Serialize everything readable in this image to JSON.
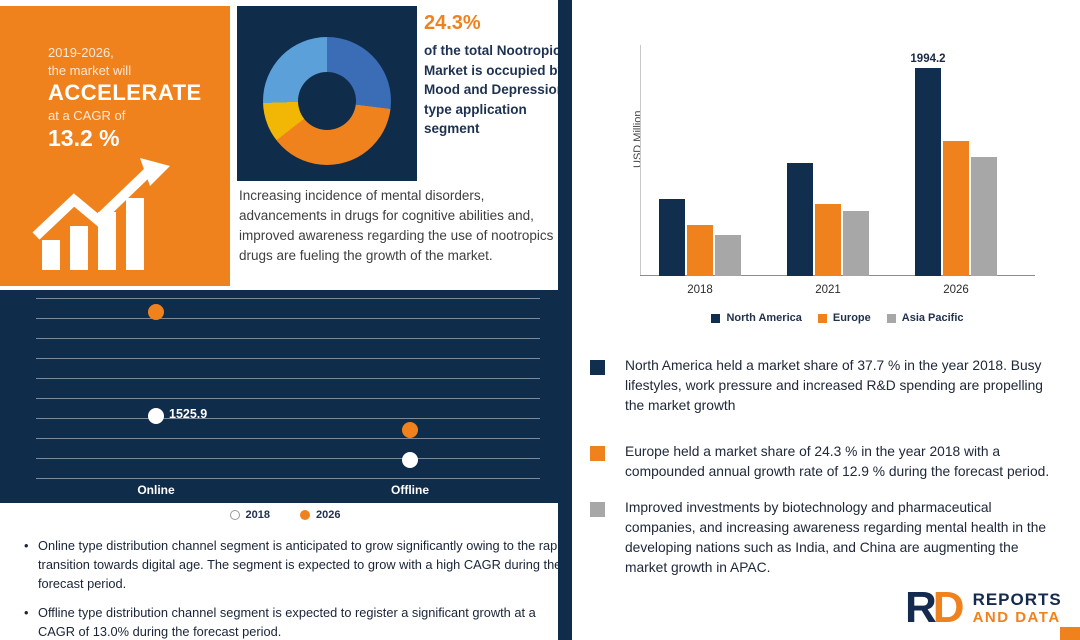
{
  "colors": {
    "orange": "#F0821E",
    "navy": "#102C4B",
    "bar_navy": "#122E4F",
    "gray": "#A7A7A7"
  },
  "promo": {
    "period": "2019-2026,",
    "line2": "the market will",
    "accelerate": "ACCELERATE",
    "cagr_label": "at a CAGR of",
    "cagr_value": "13.2 %"
  },
  "application_highlight": {
    "pct": "24.3%",
    "desc": "of the total Nootropics Market is occupied by Mood and Depression type application segment",
    "paragraph": "Increasing incidence of mental disorders, advancements in drugs for cognitive abilities and, improved awareness regarding the use of nootropics drugs are fueling the growth of the market."
  },
  "left_bullets": [
    "Online type distribution channel segment is anticipated to grow significantly owing to the rapid transition towards digital age. The segment is expected to grow with a high CAGR during the forecast period.",
    "Offline type distribution channel segment is expected to register a significant growth at a CAGR of 13.0% during the forecast period."
  ],
  "right_bullets": [
    {
      "color": "#122E4F",
      "text": "North America held a market share of 37.7 % in the year 2018. Busy lifestyles, work pressure and increased R&D spending are propelling the market growth"
    },
    {
      "color": "#F0821E",
      "text": "Europe held a market share of 24.3 % in the year 2018 with a compounded annual growth rate of 12.9 % during the forecast period."
    },
    {
      "color": "#A7A7A7",
      "text": "Improved investments by biotechnology and pharmaceutical companies, and increasing awareness regarding mental health in the developing nations such as India, and China are augmenting the market growth in APAC."
    }
  ],
  "logo": {
    "mark_r": "R",
    "mark_d": "D",
    "name_top": "REPORTS",
    "name_bottom": "AND DATA"
  },
  "chart_data": [
    {
      "id": "regional-bar",
      "type": "bar",
      "title": "",
      "ylabel": "USD Million",
      "categories": [
        "2018",
        "2021",
        "2026"
      ],
      "series": [
        {
          "name": "North America",
          "color": "#122E4F",
          "values": [
            743,
            1086,
            1994.2
          ]
        },
        {
          "name": "Europe",
          "color": "#F0821E",
          "values": [
            489,
            694,
            1300
          ]
        },
        {
          "name": "Asia Pacific",
          "color": "#A7A7A7",
          "values": [
            391,
            626,
            1144
          ]
        }
      ],
      "data_label": {
        "series": "North America",
        "category": "2026",
        "text": "1994.2"
      },
      "ylim": [
        0,
        2150
      ],
      "grid": false,
      "legend_position": "bottom"
    },
    {
      "id": "channel-dot",
      "type": "scatter",
      "title": "",
      "categories": [
        "Online",
        "Offline"
      ],
      "series": [
        {
          "name": "2018",
          "color": "#FFFFFF",
          "values": [
            1525.9,
            450
          ]
        },
        {
          "name": "2026",
          "color": "#F0821E",
          "values": [
            4050,
            1175
          ]
        }
      ],
      "data_label": {
        "series": "2018",
        "category": "Online",
        "text": "1525.9"
      },
      "ylim": [
        0,
        4400
      ],
      "gridlines": 10,
      "grid": true,
      "legend_position": "bottom"
    },
    {
      "id": "application-donut",
      "type": "pie",
      "slices": [
        {
          "name": "segment-blue",
          "color": "#3A6DB5",
          "value": 27
        },
        {
          "name": "segment-orange",
          "color": "#F0821E",
          "value": 37.5
        },
        {
          "name": "segment-yellow",
          "color": "#F2B705",
          "value": 10
        },
        {
          "name": "segment-lightblue",
          "color": "#5BA0D8",
          "value": 25.5
        }
      ]
    }
  ]
}
